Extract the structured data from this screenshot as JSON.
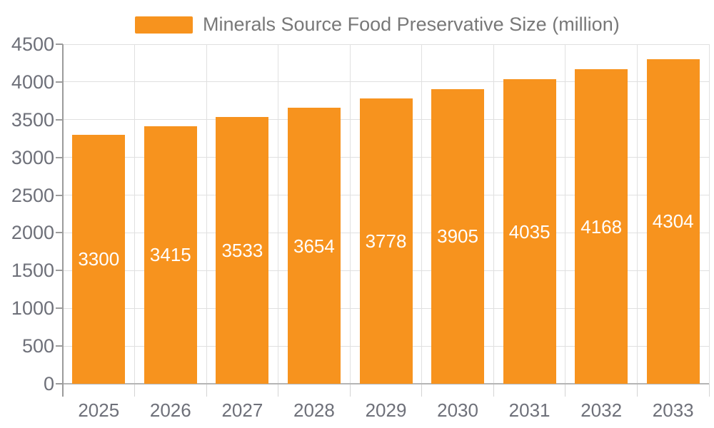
{
  "legend": {
    "label": "Minerals Source Food Preservative Size (million)"
  },
  "chart_data": {
    "type": "bar",
    "title": "Minerals Source Food Preservative Size (million)",
    "categories": [
      "2025",
      "2026",
      "2027",
      "2028",
      "2029",
      "2030",
      "2031",
      "2032",
      "2033"
    ],
    "values": [
      3300,
      3415,
      3533,
      3654,
      3778,
      3905,
      4035,
      4168,
      4304
    ],
    "series": [
      {
        "name": "Minerals Source Food Preservative Size (million)",
        "values": [
          3300,
          3415,
          3533,
          3654,
          3778,
          3905,
          4035,
          4168,
          4304
        ]
      }
    ],
    "xlabel": "",
    "ylabel": "",
    "ylim": [
      0,
      4500
    ],
    "ytick_step": 500,
    "yticks": [
      0,
      500,
      1000,
      1500,
      2000,
      2500,
      3000,
      3500,
      4000,
      4500
    ],
    "grid": true,
    "legend_position": "top-center",
    "bar_label_position": "inside-middle",
    "colors": {
      "bar": "#F7931E",
      "bar_label": "#FFFFFF",
      "axis_text": "#6E7079",
      "legend_text": "#787878",
      "grid_line": "#E0E0E0",
      "axis_line": "#9B9B9B",
      "x_axis_line": "#B5B5B5"
    }
  }
}
